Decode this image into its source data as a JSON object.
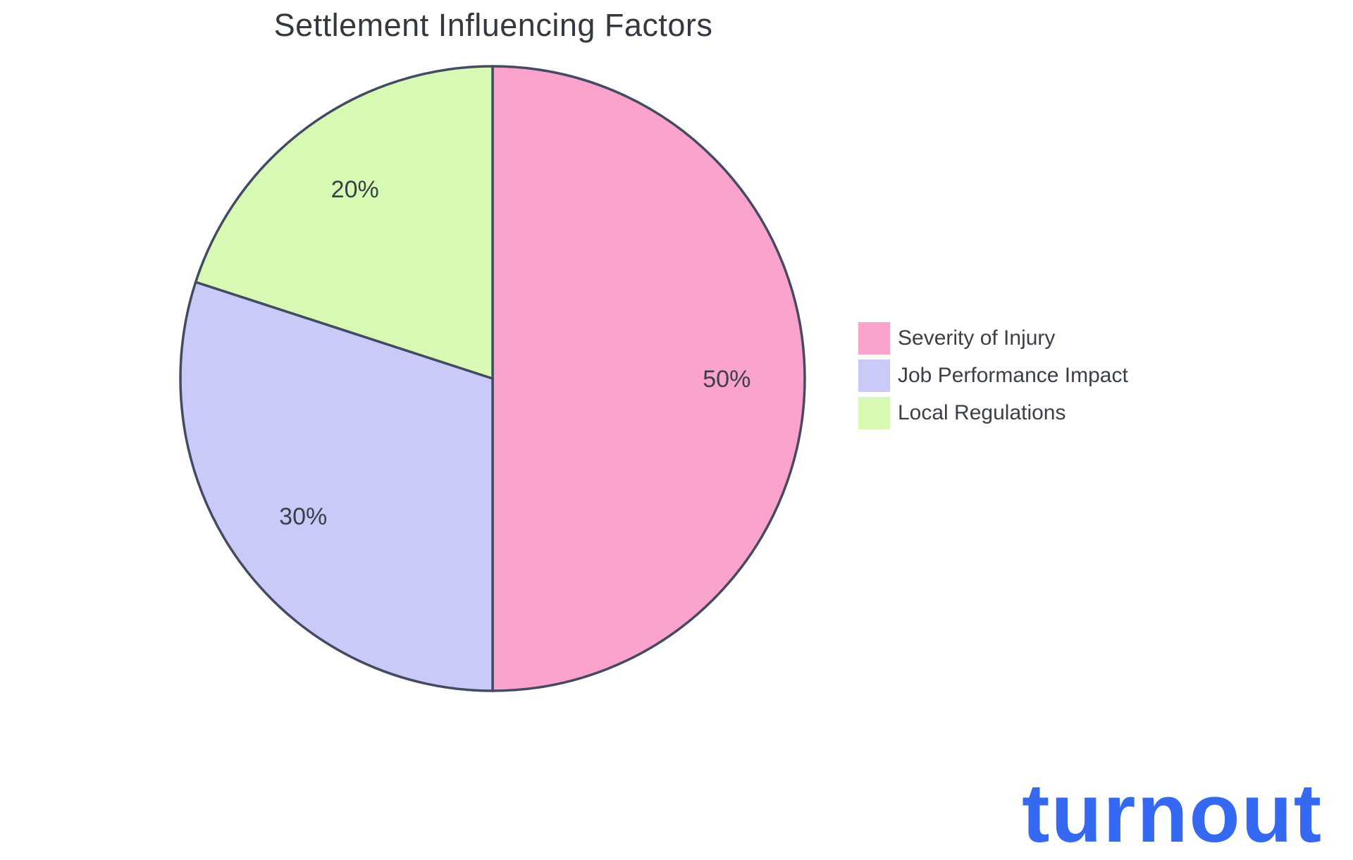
{
  "chart_data": {
    "type": "pie",
    "title": "Settlement Influencing Factors",
    "categories": [
      "Severity of Injury",
      "Job Performance Impact",
      "Local Regulations"
    ],
    "values": [
      50,
      30,
      20
    ],
    "value_labels": [
      "50%",
      "30%",
      "20%"
    ],
    "unit": "percent",
    "colors": [
      "#FBA3CD",
      "#CACAF8",
      "#D7F9B3"
    ],
    "slice_border_color": "#454A63",
    "label_color": "#3B4048",
    "title_color": "#34383F",
    "start_angle_deg": 0,
    "direction": "clockwise",
    "legend_position": "right",
    "grid": false
  },
  "legend": {
    "items": [
      {
        "label": "Severity of Injury",
        "color": "#FBA3CD"
      },
      {
        "label": "Job Performance Impact",
        "color": "#CACAF8"
      },
      {
        "label": "Local Regulations",
        "color": "#D7F9B3"
      }
    ]
  },
  "branding": {
    "logo_text": "turnout",
    "logo_color": "#3569F1"
  }
}
